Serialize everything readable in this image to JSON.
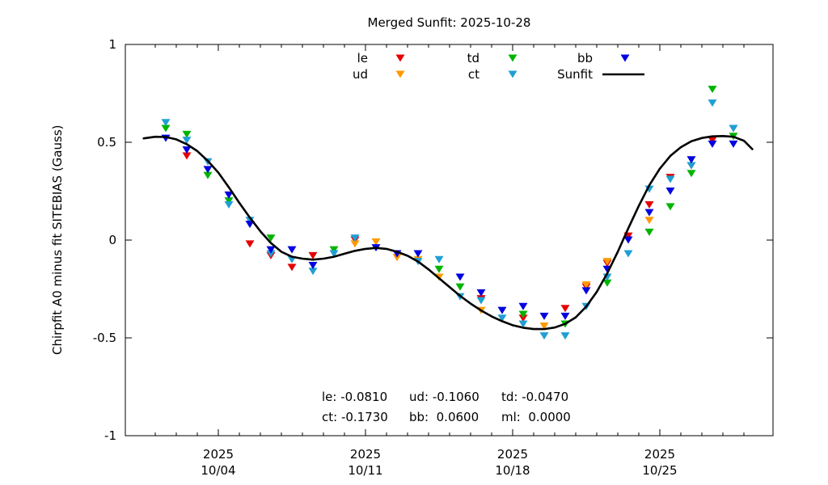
{
  "chart_data": {
    "type": "scatter",
    "title": "Merged Sunfit: 2025-10-28",
    "background_color": "#ffffff",
    "axis_color": "#000000",
    "y_axis": {
      "label": "Chirpfit A0 minus fit SITEBIAS (Gauss)",
      "range": [
        -1,
        1
      ],
      "ticks": [
        {
          "v": 1,
          "label": "1"
        },
        {
          "v": 0.5,
          "label": "0.5"
        },
        {
          "v": 0,
          "label": "0"
        },
        {
          "v": -0.5,
          "label": "-0.5"
        },
        {
          "v": -1,
          "label": "-1"
        }
      ]
    },
    "x_axis": {
      "unit": "day of October 2025",
      "range_days": [
        0.45,
        29.42
      ],
      "minor_days": {
        "from": 1,
        "to": 29
      },
      "major_ticks": [
        {
          "day": 4,
          "line1": "2025",
          "line2": "10/04"
        },
        {
          "day": 11,
          "line1": "2025",
          "line2": "10/11"
        },
        {
          "day": 18,
          "line1": "2025",
          "line2": "10/18"
        },
        {
          "day": 25,
          "line1": "2025",
          "line2": "10/25"
        }
      ]
    },
    "markers_plotted_at_day_plus": 0.5,
    "series": [
      {
        "id": "le",
        "label": "le",
        "color": "#e60000",
        "points": [
          [
            2,
            0.43
          ],
          [
            5,
            -0.02
          ],
          [
            6,
            -0.08
          ],
          [
            7,
            -0.14
          ],
          [
            8,
            -0.08
          ],
          [
            10,
            0.0
          ],
          [
            16,
            -0.3
          ],
          [
            18,
            -0.4
          ],
          [
            20,
            -0.35
          ],
          [
            21,
            -0.24
          ],
          [
            22,
            -0.12
          ],
          [
            23,
            0.02
          ],
          [
            24,
            0.18
          ],
          [
            25,
            0.32
          ],
          [
            26,
            0.38
          ],
          [
            27,
            0.51
          ],
          [
            28,
            0.57
          ]
        ]
      },
      {
        "id": "ud",
        "label": "ud",
        "color": "#ff9900",
        "points": [
          [
            10,
            -0.02
          ],
          [
            11,
            -0.01
          ],
          [
            12,
            -0.09
          ],
          [
            13,
            -0.1
          ],
          [
            14,
            -0.19
          ],
          [
            16,
            -0.36
          ],
          [
            19,
            -0.44
          ],
          [
            21,
            -0.23
          ],
          [
            22,
            -0.11
          ],
          [
            24,
            0.1
          ]
        ]
      },
      {
        "id": "td",
        "label": "td",
        "color": "#00b400",
        "points": [
          [
            1,
            0.57
          ],
          [
            2,
            0.54
          ],
          [
            3,
            0.33
          ],
          [
            4,
            0.2
          ],
          [
            6,
            0.01
          ],
          [
            9,
            -0.05
          ],
          [
            14,
            -0.15
          ],
          [
            15,
            -0.24
          ],
          [
            18,
            -0.38
          ],
          [
            20,
            -0.43
          ],
          [
            22,
            -0.22
          ],
          [
            24,
            0.04
          ],
          [
            25,
            0.17
          ],
          [
            26,
            0.34
          ],
          [
            27,
            0.77
          ],
          [
            28,
            0.53
          ]
        ]
      },
      {
        "id": "ct",
        "label": "ct",
        "color": "#1f9fd4",
        "points": [
          [
            1,
            0.6
          ],
          [
            2,
            0.51
          ],
          [
            3,
            0.4
          ],
          [
            4,
            0.18
          ],
          [
            5,
            0.1
          ],
          [
            6,
            -0.07
          ],
          [
            7,
            -0.1
          ],
          [
            8,
            -0.16
          ],
          [
            9,
            -0.07
          ],
          [
            10,
            0.01
          ],
          [
            13,
            -0.11
          ],
          [
            14,
            -0.1
          ],
          [
            15,
            -0.29
          ],
          [
            16,
            -0.31
          ],
          [
            17,
            -0.4
          ],
          [
            18,
            -0.43
          ],
          [
            19,
            -0.49
          ],
          [
            20,
            -0.49
          ],
          [
            21,
            -0.34
          ],
          [
            22,
            -0.19
          ],
          [
            23,
            -0.07
          ],
          [
            24,
            0.26
          ],
          [
            25,
            0.31
          ],
          [
            26,
            0.38
          ],
          [
            27,
            0.7
          ],
          [
            28,
            0.57
          ]
        ]
      },
      {
        "id": "bb",
        "label": "bb",
        "color": "#0000e0",
        "points": [
          [
            1,
            0.52
          ],
          [
            2,
            0.46
          ],
          [
            3,
            0.36
          ],
          [
            4,
            0.23
          ],
          [
            5,
            0.08
          ],
          [
            6,
            -0.05
          ],
          [
            7,
            -0.05
          ],
          [
            8,
            -0.13
          ],
          [
            11,
            -0.04
          ],
          [
            12,
            -0.07
          ],
          [
            13,
            -0.07
          ],
          [
            15,
            -0.19
          ],
          [
            16,
            -0.27
          ],
          [
            17,
            -0.36
          ],
          [
            18,
            -0.34
          ],
          [
            19,
            -0.39
          ],
          [
            20,
            -0.39
          ],
          [
            21,
            -0.26
          ],
          [
            22,
            -0.15
          ],
          [
            23,
            0.0
          ],
          [
            24,
            0.14
          ],
          [
            25,
            0.25
          ],
          [
            26,
            0.41
          ],
          [
            27,
            0.49
          ],
          [
            28,
            0.49
          ]
        ]
      }
    ],
    "sunfit": {
      "label": "Sunfit",
      "color": "#000000",
      "points": [
        [
          0.45,
          0.52
        ],
        [
          1.0,
          0.528
        ],
        [
          1.5,
          0.527
        ],
        [
          2.0,
          0.515
        ],
        [
          2.5,
          0.49
        ],
        [
          3.0,
          0.455
        ],
        [
          3.5,
          0.405
        ],
        [
          4.0,
          0.345
        ],
        [
          4.5,
          0.27
        ],
        [
          5.0,
          0.19
        ],
        [
          5.5,
          0.115
        ],
        [
          6.0,
          0.045
        ],
        [
          6.5,
          -0.015
        ],
        [
          7.0,
          -0.06
        ],
        [
          7.5,
          -0.085
        ],
        [
          8.0,
          -0.095
        ],
        [
          8.5,
          -0.1
        ],
        [
          9.0,
          -0.095
        ],
        [
          9.5,
          -0.085
        ],
        [
          10.0,
          -0.07
        ],
        [
          10.5,
          -0.055
        ],
        [
          11.0,
          -0.045
        ],
        [
          11.5,
          -0.04
        ],
        [
          12.0,
          -0.045
        ],
        [
          12.5,
          -0.06
        ],
        [
          13.0,
          -0.08
        ],
        [
          13.5,
          -0.11
        ],
        [
          14.0,
          -0.15
        ],
        [
          14.5,
          -0.195
        ],
        [
          15.0,
          -0.24
        ],
        [
          15.5,
          -0.285
        ],
        [
          16.0,
          -0.325
        ],
        [
          16.5,
          -0.36
        ],
        [
          17.0,
          -0.39
        ],
        [
          17.5,
          -0.415
        ],
        [
          18.0,
          -0.435
        ],
        [
          18.5,
          -0.448
        ],
        [
          19.0,
          -0.455
        ],
        [
          19.5,
          -0.455
        ],
        [
          20.0,
          -0.447
        ],
        [
          20.5,
          -0.428
        ],
        [
          21.0,
          -0.395
        ],
        [
          21.5,
          -0.34
        ],
        [
          22.0,
          -0.265
        ],
        [
          22.5,
          -0.17
        ],
        [
          23.0,
          -0.06
        ],
        [
          23.5,
          0.06
        ],
        [
          24.0,
          0.175
        ],
        [
          24.5,
          0.28
        ],
        [
          25.0,
          0.365
        ],
        [
          25.5,
          0.43
        ],
        [
          26.0,
          0.475
        ],
        [
          26.5,
          0.505
        ],
        [
          27.0,
          0.522
        ],
        [
          27.5,
          0.53
        ],
        [
          28.0,
          0.532
        ],
        [
          28.5,
          0.528
        ],
        [
          29.0,
          0.508
        ],
        [
          29.4,
          0.465
        ]
      ]
    },
    "legend": {
      "position": "top-center-inside",
      "entries": [
        {
          "label": "le",
          "kind": "marker",
          "color": "#e60000",
          "row": 0,
          "col": 0
        },
        {
          "label": "ud",
          "kind": "marker",
          "color": "#ff9900",
          "row": 1,
          "col": 0
        },
        {
          "label": "td",
          "kind": "marker",
          "color": "#00b400",
          "row": 0,
          "col": 1
        },
        {
          "label": "ct",
          "kind": "marker",
          "color": "#1f9fd4",
          "row": 1,
          "col": 1
        },
        {
          "label": "bb",
          "kind": "marker",
          "color": "#0000e0",
          "row": 0,
          "col": 2
        },
        {
          "label": "Sunfit",
          "kind": "line",
          "color": "#000000",
          "row": 1,
          "col": 2
        }
      ]
    },
    "fit_offsets": {
      "le": -0.081,
      "ud": -0.106,
      "td": -0.047,
      "ct": -0.173,
      "bb": 0.06,
      "ml": 0.0
    },
    "annotations": {
      "row1": [
        "le: -0.0810",
        "ud: -0.1060",
        "td: -0.0470"
      ],
      "row2": [
        "ct: -0.1730",
        "bb:  0.0600",
        "ml:  0.0000"
      ]
    }
  }
}
